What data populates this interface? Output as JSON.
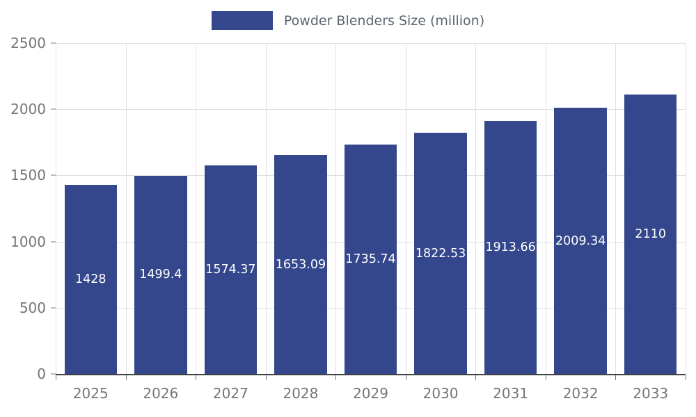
{
  "legend": {
    "label": "Powder Blenders Size (million)"
  },
  "chart_data": {
    "type": "bar",
    "title": "Powder Blenders Size (million)",
    "xlabel": "",
    "ylabel": "",
    "categories": [
      "2025",
      "2026",
      "2027",
      "2028",
      "2029",
      "2030",
      "2031",
      "2032",
      "2033"
    ],
    "series": [
      {
        "name": "Powder Blenders Size (million)",
        "values": [
          1428,
          1499.4,
          1574.37,
          1653.09,
          1735.74,
          1822.53,
          1913.66,
          2009.34,
          2110
        ],
        "labels": [
          "1428",
          "1499.4",
          "1574.37",
          "1653.09",
          "1735.74",
          "1822.53",
          "1913.66",
          "2009.34",
          "2110"
        ]
      }
    ],
    "ylim": [
      0,
      2500
    ],
    "yticks": [
      0,
      500,
      1000,
      1500,
      2000,
      2500
    ],
    "grid": true,
    "legend_position": "top",
    "colors": {
      "bar": "#35478c",
      "bar_label": "#ffffff",
      "axis_text": "#757575",
      "title_text": "#5b6571",
      "gridline": "#e0e0e0",
      "axis_line": "#404040"
    }
  }
}
